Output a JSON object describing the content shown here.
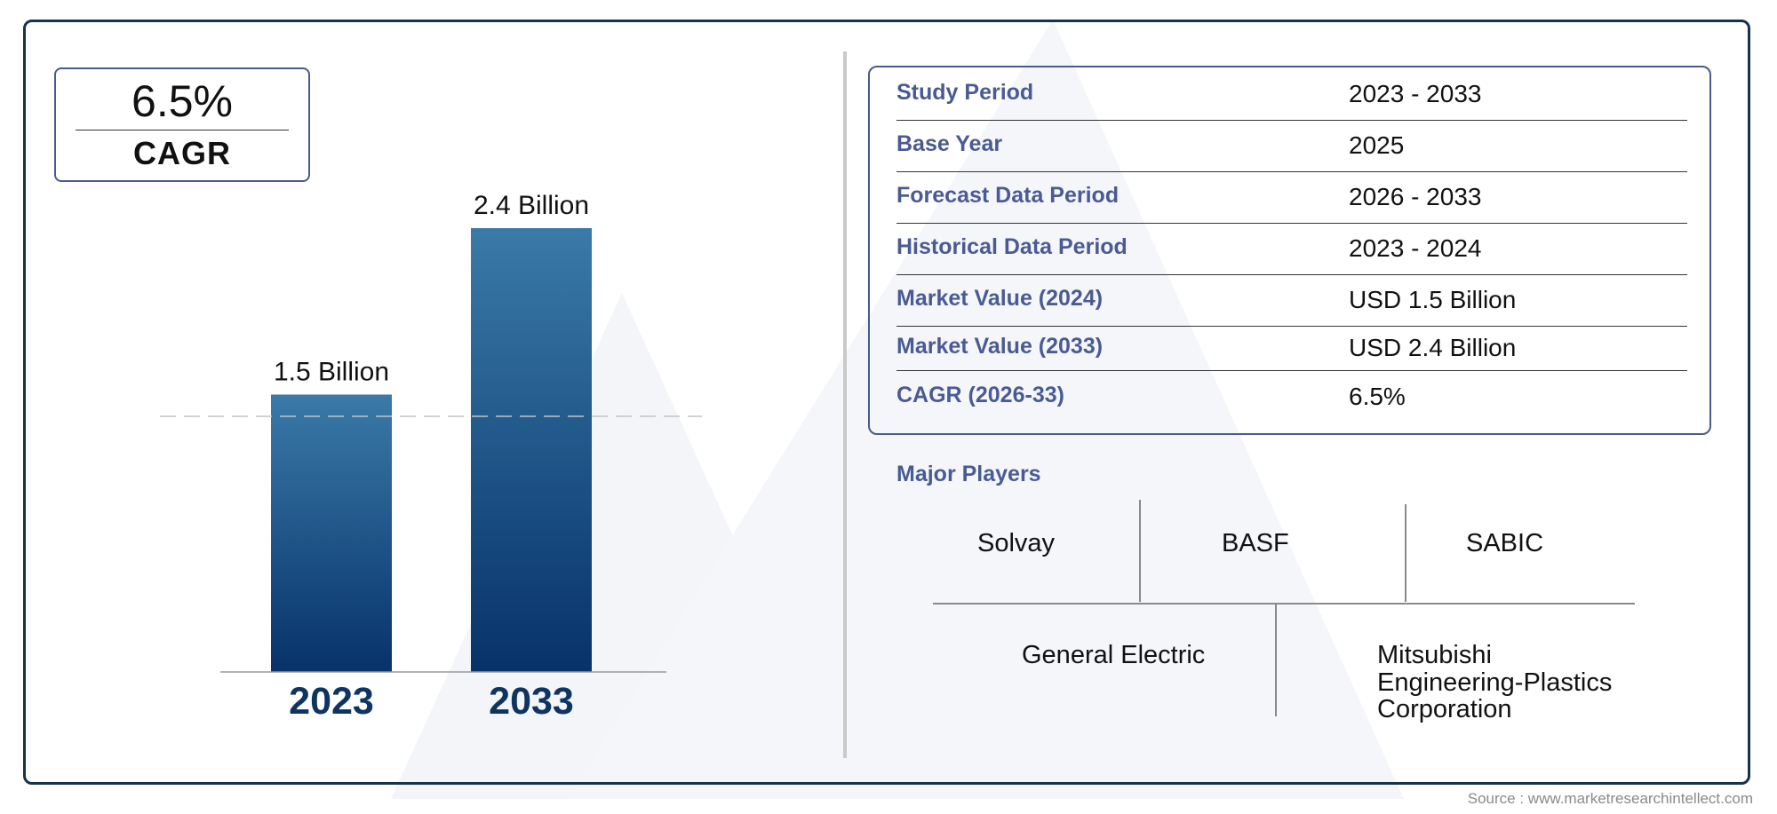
{
  "cagr": {
    "value": "6.5%",
    "label": "CAGR"
  },
  "chart_data": {
    "type": "bar",
    "categories": [
      "2023",
      "2033"
    ],
    "values": [
      1.5,
      2.4
    ],
    "value_labels": [
      "1.5 Billion",
      "2.4 Billion"
    ],
    "unit": "Billion",
    "bar_color_top": "#3a7aa8",
    "bar_color_bottom": "#07326a",
    "ylim": [
      0,
      2.4
    ]
  },
  "info_table": {
    "rows": [
      {
        "key": "Study Period",
        "value": "2023 - 2033"
      },
      {
        "key": "Base Year",
        "value": "2025"
      },
      {
        "key": "Forecast Data Period",
        "value": "2026 - 2033"
      },
      {
        "key": "Historical Data Period",
        "value": "2023 - 2024"
      },
      {
        "key": "Market Value (2024)",
        "value": "USD 1.5 Billion"
      },
      {
        "key": "Market Value (2033)",
        "value": "USD 2.4 Billion"
      },
      {
        "key": "CAGR (2026-33)",
        "value": "6.5%"
      }
    ]
  },
  "major_players": {
    "title": "Major Players",
    "players": [
      "Solvay",
      "BASF",
      "SABIC",
      "General Electric",
      "Mitsubishi Engineering-Plastics Corporation"
    ],
    "last_player_lines": [
      "Mitsubishi",
      "Engineering-Plastics",
      "Corporation"
    ]
  },
  "source": "Source : www.marketresearchintellect.com",
  "colors": {
    "frame": "#17324f",
    "accent": "#4a5b93",
    "year_text": "#0e3461"
  }
}
